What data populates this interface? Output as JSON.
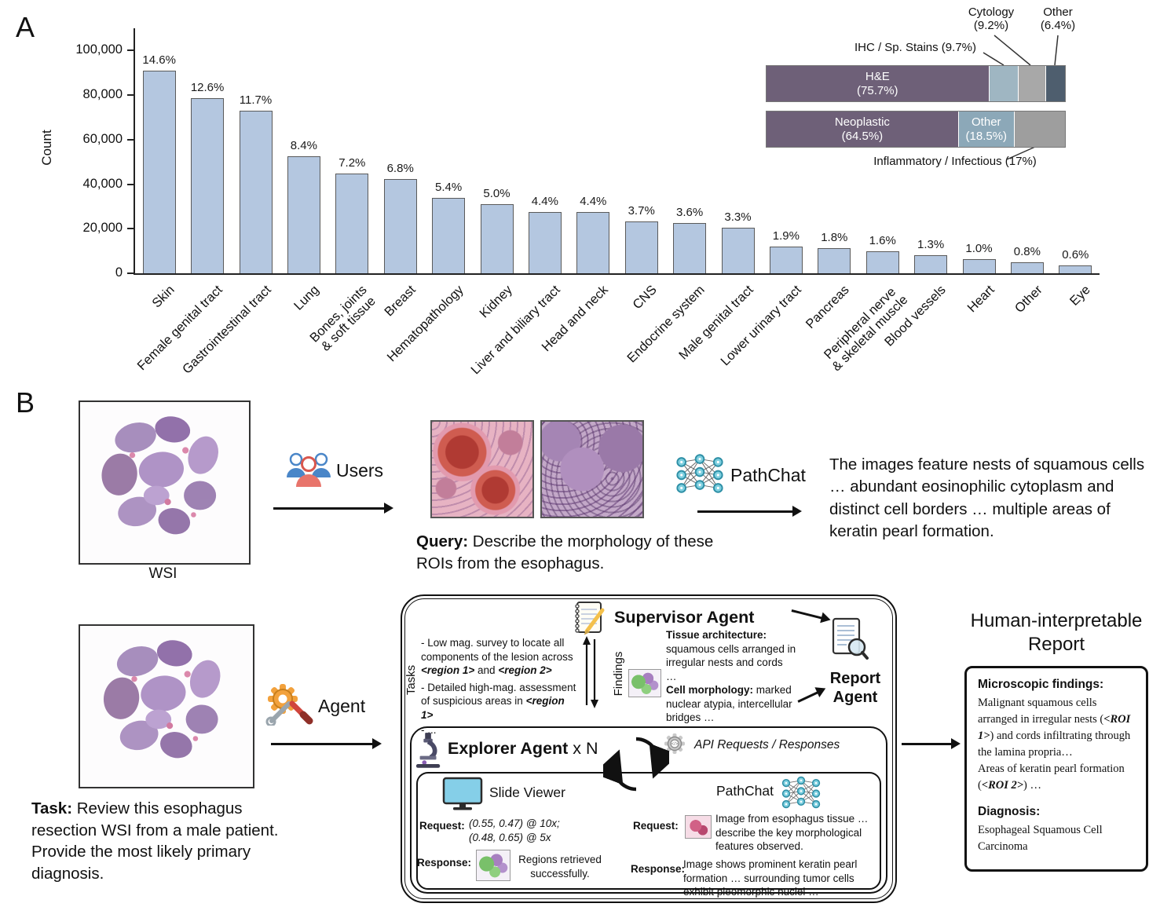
{
  "chart_data": {
    "type": "bar",
    "title": "",
    "xlabel": "",
    "ylabel": "Count",
    "ylim": [
      0,
      110000
    ],
    "yticks": [
      0,
      20000,
      40000,
      60000,
      80000,
      100000
    ],
    "ytick_labels": [
      "0",
      "20,000",
      "40,000",
      "60,000",
      "80,000",
      "100,000"
    ],
    "categories": [
      "Skin",
      "Female genital tract",
      "Gastrointestinal tract",
      "Lung",
      "Bones, joints\n& soft tissue",
      "Breast",
      "Hematopathology",
      "Kidney",
      "Liver and biliary tract",
      "Head and neck",
      "CNS",
      "Endocrine system",
      "Male genital tract",
      "Lower urinary tract",
      "Pancreas",
      "Peripheral nerve\n& skeletal muscle",
      "Blood vessels",
      "Heart",
      "Other",
      "Eye"
    ],
    "values": [
      91000,
      78700,
      73000,
      52400,
      44900,
      42400,
      33700,
      31200,
      27500,
      27400,
      23100,
      22400,
      20600,
      11900,
      11200,
      10000,
      8100,
      6200,
      5000,
      3700
    ],
    "bar_labels": [
      "14.6%",
      "12.6%",
      "11.7%",
      "8.4%",
      "7.2%",
      "6.8%",
      "5.4%",
      "5.0%",
      "4.4%",
      "4.4%",
      "3.7%",
      "3.6%",
      "3.3%",
      "1.9%",
      "1.8%",
      "1.6%",
      "1.3%",
      "1.0%",
      "0.8%",
      "0.6%"
    ],
    "bar_color": "#b4c7e0",
    "grid": false,
    "insets": [
      {
        "name": "stain_distribution",
        "type": "stacked_bar_h",
        "segments": [
          {
            "label": "H&E\n(75.7%)",
            "pct": 75.7,
            "color": "#6e6078",
            "inside": true
          },
          {
            "label": "IHC / Sp. Stains (9.7%)",
            "pct": 9.7,
            "color": "#9fb6c2",
            "inside": false
          },
          {
            "label": "Cytology\n(9.2%)",
            "pct": 9.2,
            "color": "#a8a8a8",
            "inside": false
          },
          {
            "label": "Other\n(6.4%)",
            "pct": 6.4,
            "color": "#4e5e6e",
            "inside": false
          }
        ]
      },
      {
        "name": "diagnosis_distribution",
        "type": "stacked_bar_h",
        "segments": [
          {
            "label": "Neoplastic\n(64.5%)",
            "pct": 64.5,
            "color": "#6e6078",
            "inside": true
          },
          {
            "label": "Other\n(18.5%)",
            "pct": 18.5,
            "color": "#8ca8b8",
            "inside": true
          },
          {
            "label": "Inflammatory / Infectious (17%)",
            "pct": 17,
            "color": "#9e9e9e",
            "inside": false
          }
        ]
      }
    ]
  },
  "panel_a": {
    "label": "A",
    "ylabel": "Count",
    "inset_callouts": {
      "ihc": "IHC / Sp. Stains (9.7%)",
      "cytology": "Cytology\n(9.2%)",
      "other": "Other\n(6.4%)",
      "inflammatory": "Inflammatory / Infectious (17%)"
    }
  },
  "panel_b": {
    "label": "B",
    "wsi_label": "WSI",
    "users_label": "Users",
    "pathchat_label": "PathChat",
    "query": {
      "prefix": "Query:",
      "text": " Describe the morphology of these ROIs from the esophagus."
    },
    "pathchat_response": "The images feature nests of squamous cells … abundant eosinophilic cytoplasm and distinct cell borders … multiple areas of keratin pearl formation.",
    "task": {
      "prefix": "Task:",
      "text": " Review this esophagus resection WSI from a male patient. Provide the most likely primary diagnosis."
    },
    "agent_label": "Agent",
    "supervisor": {
      "title": "Supervisor Agent",
      "tasks_label": "Tasks",
      "tasks": [
        {
          "pre": "- Low mag. survey to locate all components of the lesion across ",
          "em1": "<region 1>",
          "mid": " and ",
          "em2": "<region 2>"
        },
        {
          "pre": "- Detailed high-mag. assessment of suspicious areas in ",
          "em1": "<region 1>"
        },
        {
          "pre": "- ..."
        }
      ],
      "findings_label": "Findings",
      "findings": {
        "arch_bold": "Tissue architecture:",
        "arch_text": " squamous cells arranged in irregular nests and cords",
        "ellipsis": "…",
        "cell_bold": "Cell morphology:",
        "cell_text": " marked nuclear atypia, intercellular bridges …"
      }
    },
    "report_agent_label": "Report\nAgent",
    "explorer": {
      "title": "Explorer Agent",
      "multiplier": " x N",
      "api_label": "API Requests / Responses",
      "slide_viewer": {
        "label": "Slide Viewer",
        "request_label": "Request:",
        "request_value": "(0.55, 0.47) @ 10x;\n(0.48, 0.65) @ 5x",
        "response_label": "Response:",
        "response_value": "Regions retrieved successfully."
      },
      "pathchat": {
        "label": "PathChat",
        "request_label": "Request:",
        "request_value": "Image from esophagus tissue … describe the key morphological features observed.",
        "response_label": "Response:",
        "response_value": "Image shows prominent keratin pearl formation … surrounding tumor cells exhibit pleomorphic nuclei …"
      }
    },
    "report": {
      "title": "Human-interpretable\nReport",
      "findings_heading": "Microscopic findings:",
      "body_1": "Malignant squamous cells arranged in irregular nests (",
      "roi_1": "<ROI 1>",
      "body_2": ") and cords infiltrating through the lamina propria…",
      "body_3": "Areas of keratin pearl formation (",
      "roi_2": "<ROI 2>",
      "body_4": ") …",
      "diagnosis_heading": "Diagnosis:",
      "diagnosis_text": "Esophageal Squamous Cell Carcinoma"
    }
  }
}
